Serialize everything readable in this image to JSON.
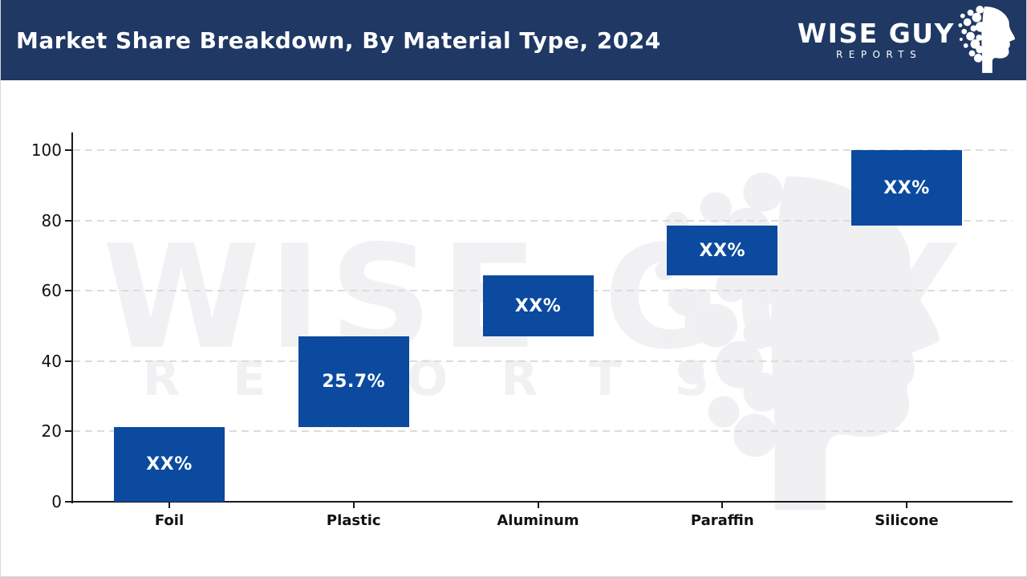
{
  "header": {
    "title": "Market Share Breakdown, By Material Type, 2024",
    "bg_color": "#1f3864",
    "logo": {
      "line1": "WISE GUY",
      "line2": "REPORTS"
    }
  },
  "watermark": {
    "line1": "WISE GUY",
    "line2": "REPORTS"
  },
  "chart_data": {
    "type": "waterfall",
    "title": "Market Share Breakdown, By Material Type, 2024",
    "xlabel": "",
    "ylabel": "",
    "categories": [
      "Foil",
      "Plastic",
      "Aluminum",
      "Paraffin",
      "Silicone"
    ],
    "segments": [
      {
        "category": "Foil",
        "start": 0,
        "end": 21.3,
        "height": 21.3,
        "label": "XX%"
      },
      {
        "category": "Plastic",
        "start": 21.3,
        "end": 47.0,
        "height": 25.7,
        "label": "25.7%"
      },
      {
        "category": "Aluminum",
        "start": 47.0,
        "end": 64.3,
        "height": 17.3,
        "label": "XX%"
      },
      {
        "category": "Paraffin",
        "start": 64.3,
        "end": 78.5,
        "height": 14.2,
        "label": "XX%"
      },
      {
        "category": "Silicone",
        "start": 78.5,
        "end": 100,
        "height": 21.5,
        "label": "XX%"
      }
    ],
    "y_ticks": [
      0,
      20,
      40,
      60,
      80,
      100
    ],
    "ylim": [
      0,
      105
    ],
    "grid": true,
    "grid_style": "dashed",
    "legend": "none",
    "bar_color": "#0b4a9e",
    "label_color": "#ffffff"
  }
}
